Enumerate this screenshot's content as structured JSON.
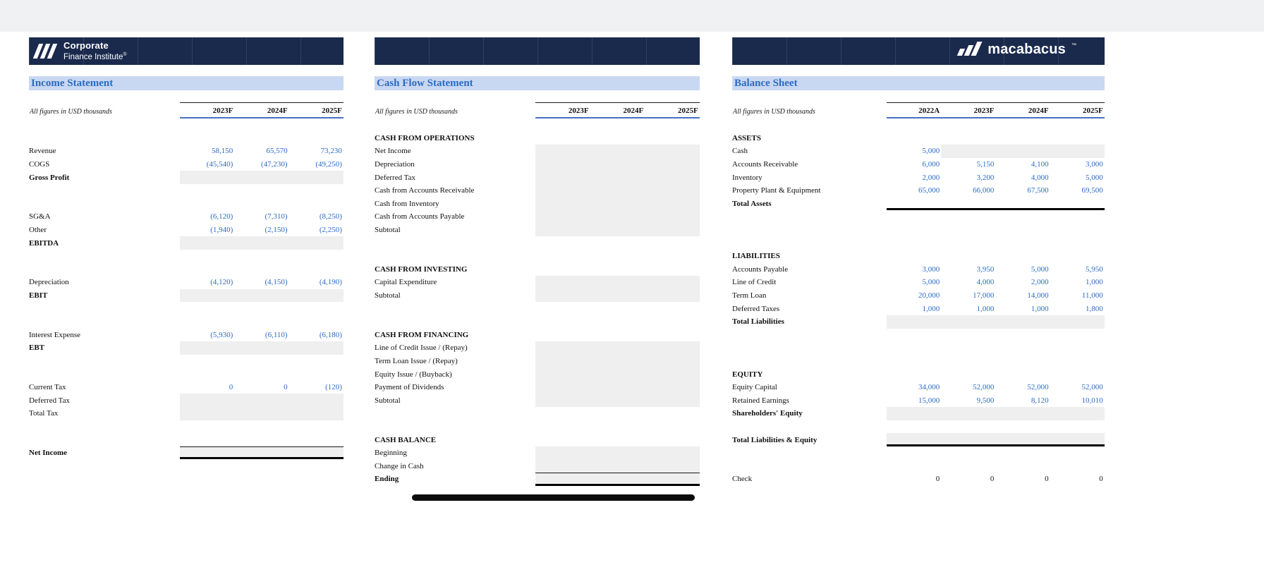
{
  "colors": {
    "navy_header": "#1a2a4d",
    "title_band_blue": "#c9d8f2",
    "title_text_blue": "#2c6bc4",
    "value_blue": "#2c6bc4",
    "header_rule_blue": "#4472c4",
    "shaded_cell": "#efefef",
    "top_strip_gray": "#eff1f2"
  },
  "logos": {
    "cfi": {
      "line1": "Corporate",
      "line2": "Finance Institute",
      "reg": "®"
    },
    "macabacus": {
      "name": "macabacus",
      "tm": "™"
    }
  },
  "statements": [
    {
      "title": "Income Statement",
      "subtitle": "All figures in USD thousands",
      "columns": [
        "2023F",
        "2024F",
        "2025F"
      ],
      "rows": [
        {
          "blank": true
        },
        {
          "blank": true
        },
        {
          "label": "Revenue",
          "values": [
            "58,150",
            "65,570",
            "73,230"
          ]
        },
        {
          "label": "COGS",
          "values": [
            "(45,540)",
            "(47,230)",
            "(49,250)"
          ]
        },
        {
          "label": "Gross Profit",
          "b": true,
          "sh": true
        },
        {
          "blank": true
        },
        {
          "blank": true
        },
        {
          "label": "SG&A",
          "values": [
            "(6,120)",
            "(7,310)",
            "(8,250)"
          ]
        },
        {
          "label": "Other",
          "values": [
            "(1,940)",
            "(2,150)",
            "(2,250)"
          ]
        },
        {
          "label": "EBITDA",
          "b": true,
          "sh": true
        },
        {
          "blank": true
        },
        {
          "blank": true
        },
        {
          "label": "Depreciation",
          "values": [
            "(4,120)",
            "(4,150)",
            "(4,190)"
          ]
        },
        {
          "label": "EBIT",
          "b": true,
          "sh": true
        },
        {
          "blank": true
        },
        {
          "blank": true
        },
        {
          "label": "Interest Expense",
          "values": [
            "(5,930)",
            "(6,110)",
            "(6,180)"
          ]
        },
        {
          "label": "EBT",
          "b": true,
          "sh": true
        },
        {
          "blank": true
        },
        {
          "blank": true
        },
        {
          "label": "Current Tax",
          "values": [
            "0",
            "0",
            "(120)"
          ]
        },
        {
          "label": "Deferred Tax",
          "sh": true
        },
        {
          "label": "Total Tax",
          "sh": true
        },
        {
          "blank": true
        },
        {
          "blank": true
        },
        {
          "label": "Net Income",
          "b": true,
          "sh": true,
          "bt": true,
          "bbt": true
        },
        {
          "blank": true
        },
        {
          "blank": true
        }
      ]
    },
    {
      "title": "Cash Flow Statement",
      "subtitle": "All figures in USD thousands",
      "columns": [
        "2023F",
        "2024F",
        "2025F"
      ],
      "rows": [
        {
          "blank": true
        },
        {
          "label": "CASH FROM OPERATIONS",
          "sec": true
        },
        {
          "label": "Net Income",
          "sh": true
        },
        {
          "label": "Depreciation",
          "sh": true
        },
        {
          "label": "Deferred Tax",
          "sh": true
        },
        {
          "label": "Cash from Accounts Receivable",
          "sh": true
        },
        {
          "label": "Cash from Inventory",
          "sh": true
        },
        {
          "label": "Cash from Accounts Payable",
          "sh": true
        },
        {
          "label": "Subtotal",
          "sh": true
        },
        {
          "blank": true
        },
        {
          "blank": true
        },
        {
          "label": "CASH FROM INVESTING",
          "sec": true
        },
        {
          "label": "Capital Expenditure",
          "sh": true
        },
        {
          "label": "Subtotal",
          "sh": true
        },
        {
          "blank": true
        },
        {
          "blank": true
        },
        {
          "label": "CASH FROM FINANCING",
          "sec": true
        },
        {
          "label": "Line of Credit Issue / (Repay)",
          "sh": true
        },
        {
          "label": "Term Loan Issue / (Repay)",
          "sh": true
        },
        {
          "label": "Equity Issue / (Buyback)",
          "sh": true
        },
        {
          "label": "Payment of Dividends",
          "sh": true
        },
        {
          "label": "Subtotal",
          "sh": true
        },
        {
          "blank": true
        },
        {
          "blank": true
        },
        {
          "label": "CASH BALANCE",
          "sec": true
        },
        {
          "label": "Beginning",
          "sh": true
        },
        {
          "label": "Change in Cash",
          "sh": true
        },
        {
          "label": "Ending",
          "b": true,
          "sh": true,
          "bt": true,
          "bbt": true
        }
      ]
    },
    {
      "title": "Balance Sheet",
      "subtitle": "All figures in USD thousands",
      "columns": [
        "2022A",
        "2023F",
        "2024F",
        "2025F"
      ],
      "rows": [
        {
          "blank": true
        },
        {
          "label": "ASSETS",
          "sec": true
        },
        {
          "label": "Cash",
          "values": [
            "5,000",
            "",
            "",
            ""
          ],
          "sh_empty": true
        },
        {
          "label": "Accounts Receivable",
          "values": [
            "6,000",
            "5,150",
            "4,100",
            "3,000"
          ]
        },
        {
          "label": "Inventory",
          "values": [
            "2,000",
            "3,200",
            "4,000",
            "5,000"
          ]
        },
        {
          "label": "Property Plant & Equipment",
          "values": [
            "65,000",
            "66,000",
            "67,500",
            "69,500"
          ]
        },
        {
          "label": "Total Assets",
          "b": true,
          "bbt": true
        },
        {
          "blank": true
        },
        {
          "blank": true
        },
        {
          "blank": true
        },
        {
          "label": "LIABILITIES",
          "sec": true
        },
        {
          "label": "Accounts Payable",
          "values": [
            "3,000",
            "3,950",
            "5,000",
            "5,950"
          ]
        },
        {
          "label": "Line of Credit",
          "values": [
            "5,000",
            "4,000",
            "2,000",
            "1,000"
          ]
        },
        {
          "label": "Term Loan",
          "values": [
            "20,000",
            "17,000",
            "14,000",
            "11,000"
          ]
        },
        {
          "label": "Deferred Taxes",
          "values": [
            "1,000",
            "1,000",
            "1,000",
            "1,800"
          ]
        },
        {
          "label": "Total Liabilities",
          "b": true,
          "sh": true
        },
        {
          "blank": true
        },
        {
          "blank": true
        },
        {
          "blank": true
        },
        {
          "label": "EQUITY",
          "sec": true
        },
        {
          "label": "Equity Capital",
          "values": [
            "34,000",
            "52,000",
            "52,000",
            "52,000"
          ]
        },
        {
          "label": "Retained Earnings",
          "values": [
            "15,000",
            "9,500",
            "8,120",
            "10,010"
          ]
        },
        {
          "label": "Shareholders' Equity",
          "b": true,
          "sh": true
        },
        {
          "blank": true
        },
        {
          "label": "Total Liabilities & Equity",
          "b": true,
          "sh": true,
          "bbt": true
        },
        {
          "blank": true
        },
        {
          "blank": true
        },
        {
          "label": "Check",
          "values": [
            "0",
            "0",
            "0",
            "0"
          ],
          "black": true
        }
      ]
    }
  ]
}
